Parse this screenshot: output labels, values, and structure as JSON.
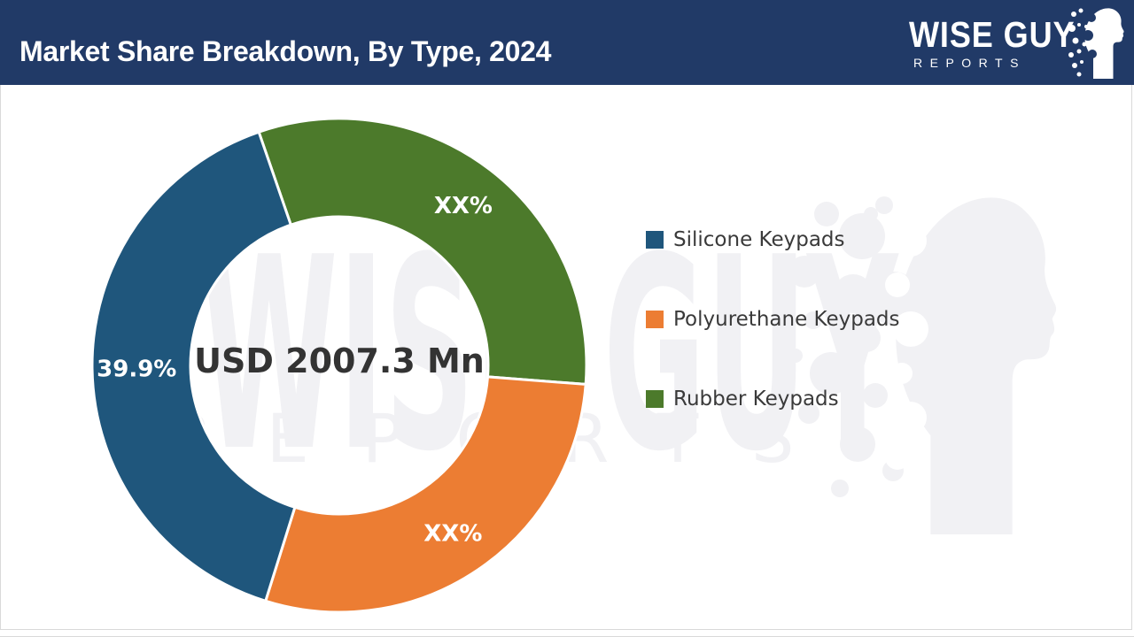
{
  "header": {
    "title": "Market Share Breakdown, By Type, 2024",
    "logo": {
      "brand": "WISE GUY",
      "reports": "REPORTS"
    }
  },
  "watermark": {
    "brand": "WISE GUY",
    "reports": "REPORTS"
  },
  "chart_data": {
    "type": "pie",
    "subtype": "donut",
    "title": "Market Share Breakdown, By Type, 2024",
    "center_label": "USD 2007.3 Mn",
    "legend_position": "right",
    "slices": [
      {
        "label": "Silicone Keypads",
        "display_value": "39.9%",
        "value_pct": 39.9,
        "color": "#1F567C"
      },
      {
        "label": "Polyurethane Keypads",
        "display_value": "XX%",
        "value_pct": 28.6,
        "color": "#EC7D33"
      },
      {
        "label": "Rubber Keypads",
        "display_value": "XX%",
        "value_pct": 31.5,
        "color": "#4C7A2B"
      }
    ],
    "draw": {
      "start_angle_deg": 341,
      "clockwise": true,
      "order": [
        2,
        1,
        0
      ],
      "outer_radius": 279,
      "inner_radius": 168,
      "label_radius_factor": 0.82,
      "divider_color": "#ffffff"
    }
  },
  "colors": {
    "header_bg": "#213A67",
    "watermark": "#F1F1F4",
    "center_text": "#333333",
    "legend_text": "#3A3A3A",
    "border": "#D9D9D9"
  }
}
